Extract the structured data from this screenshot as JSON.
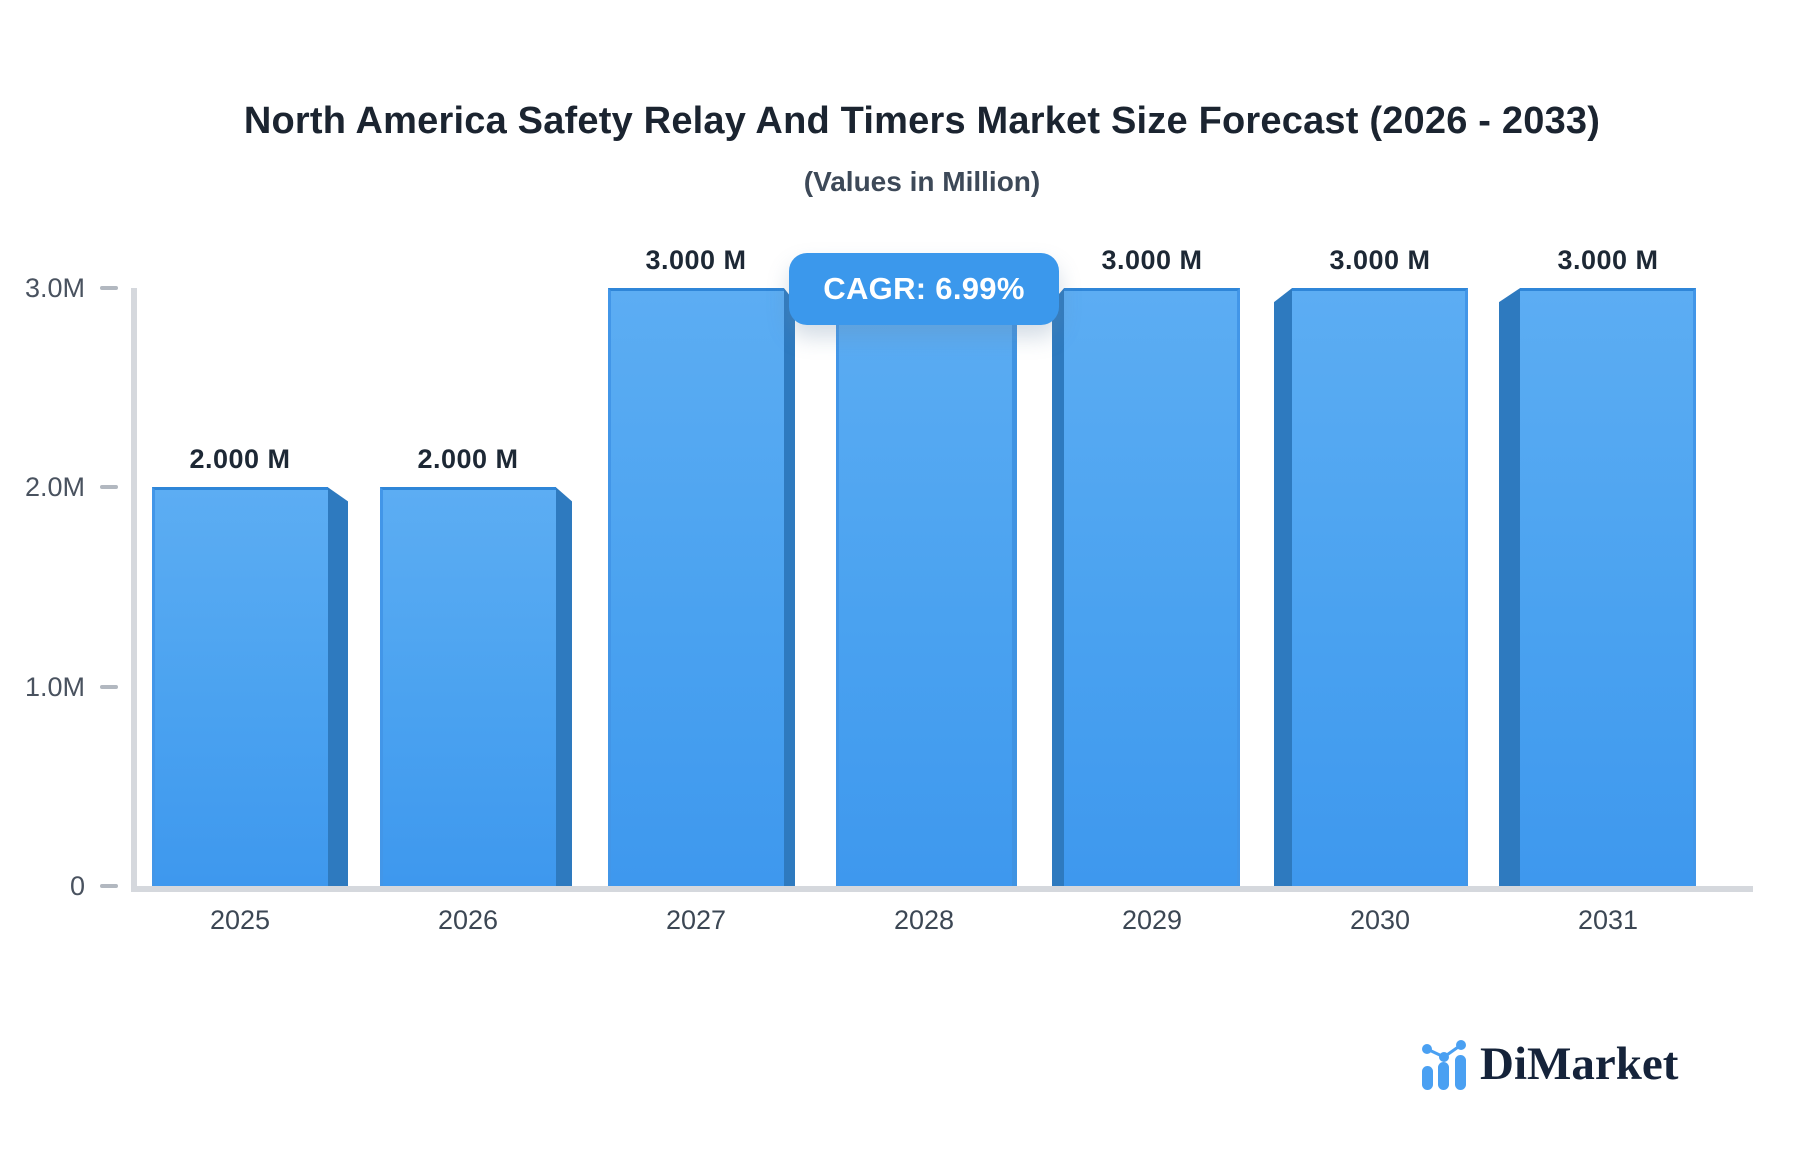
{
  "header": {
    "title": "North America Safety Relay And Timers Market Size Forecast (2026 - 2033)",
    "subtitle": "(Values in Million)"
  },
  "badge": {
    "label": "CAGR: 6.99%",
    "color": "#3b98ec"
  },
  "logo": {
    "text": "DiMarket",
    "icon": "bar-chart-trend-icon",
    "icon_color": "#4aa0f2",
    "text_color": "#15233a"
  },
  "chart_data": {
    "type": "bar",
    "title": "North America Safety Relay And Timers Market Size Forecast (2026 - 2033)",
    "subtitle": "(Values in Million)",
    "unit": "Million",
    "categories": [
      "2025",
      "2026",
      "2027",
      "2028",
      "2029",
      "2030",
      "2031"
    ],
    "values": [
      2.0,
      2.0,
      3.0,
      3.0,
      3.0,
      3.0,
      3.0
    ],
    "bars": [
      {
        "year": "2025",
        "value": 2.0,
        "label": "2.000 M",
        "label_visible": true
      },
      {
        "year": "2026",
        "value": 2.0,
        "label": "2.000 M",
        "label_visible": true
      },
      {
        "year": "2027",
        "value": 3.0,
        "label": "3.000 M",
        "label_visible": true
      },
      {
        "year": "2028",
        "value": 3.0,
        "label": "3.000 M",
        "label_visible": false
      },
      {
        "year": "2029",
        "value": 3.0,
        "label": "3.000 M",
        "label_visible": true
      },
      {
        "year": "2030",
        "value": 3.0,
        "label": "3.000 M",
        "label_visible": true
      },
      {
        "year": "2031",
        "value": 3.0,
        "label": "3.000 M",
        "label_visible": true
      }
    ],
    "y_ticks": [
      {
        "label": "3.0M",
        "value": 3.0
      },
      {
        "label": "2.0M",
        "value": 2.0
      },
      {
        "label": "1.0M",
        "value": 1.0
      },
      {
        "label": "0",
        "value": 0.0
      }
    ],
    "ylim": [
      0,
      3.0
    ],
    "xlabel": "",
    "ylabel": "",
    "grid": false,
    "legend": "none",
    "annotation": "CAGR: 6.99%",
    "bar_color_top": "#5cadf3",
    "bar_color_bottom": "#3e98ee",
    "bar_side_color": "#2e7abf",
    "axis_color": "#d5d8dd"
  }
}
